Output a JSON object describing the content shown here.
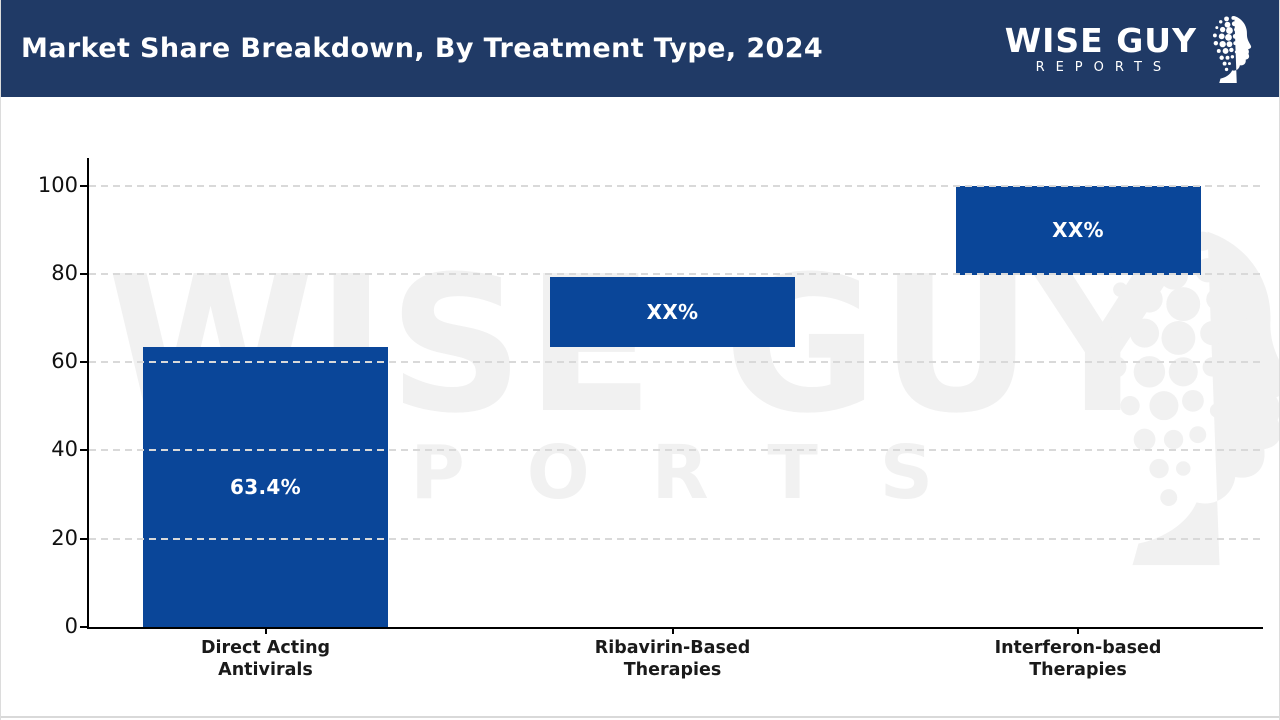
{
  "header": {
    "title": "Market Share Breakdown, By Treatment Type, 2024",
    "logo": {
      "name": "WISE GUY",
      "sub": "REPORTS"
    }
  },
  "watermark": {
    "name": "WISE GUY",
    "sub": "REPORTS"
  },
  "chart_data": {
    "type": "bar",
    "subtype": "waterfall-breakdown",
    "title": "Market Share Breakdown, By Treatment Type, 2024",
    "categories": [
      {
        "lines": [
          "Direct Acting",
          "Antivirals"
        ]
      },
      {
        "lines": [
          "Ribavirin-Based",
          "Therapies"
        ]
      },
      {
        "lines": [
          "Interferon-based",
          "Therapies"
        ]
      }
    ],
    "segments": [
      {
        "start": 0,
        "end": 63.4,
        "label": "63.4%"
      },
      {
        "start": 63.4,
        "end": 79.2,
        "label": "XX%"
      },
      {
        "start": 79.8,
        "end": 100,
        "label": "XX%"
      }
    ],
    "ylim": [
      0,
      100
    ],
    "yticks": [
      0,
      20,
      40,
      60,
      80,
      100
    ],
    "xlabel": "",
    "ylabel": "",
    "grid": {
      "axis": "y",
      "style": "dashed"
    },
    "legend": null,
    "bar_color": "#0a4699",
    "bar_label_color": "#ffffff"
  },
  "colors": {
    "header_bg": "#203a66",
    "header_text": "#ffffff",
    "bar": "#0a4699",
    "watermark": "#f1f1f1",
    "axis": "#000000",
    "grid": "#d9d9d9"
  }
}
